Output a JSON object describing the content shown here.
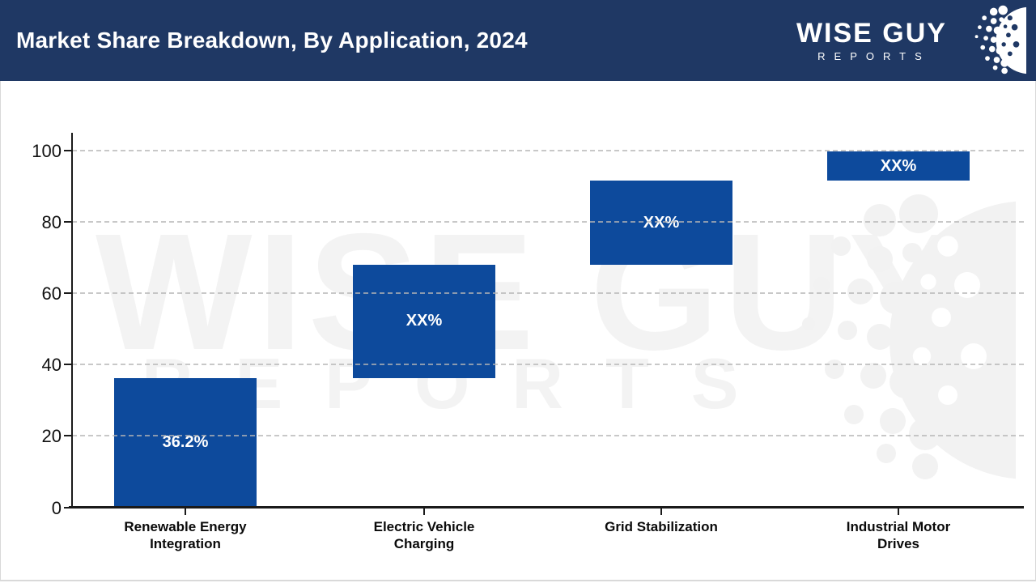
{
  "header": {
    "title": "Market Share Breakdown, By Application, 2024",
    "logo": {
      "line1": "WISE GUY",
      "line2": "REPORTS"
    }
  },
  "watermark": {
    "line1": "WISE GUY",
    "line2": "REPORTS"
  },
  "colors": {
    "header_navy": "#1f3864",
    "bar_blue": "#0d4a9c",
    "bar_label_white": "#ffffff",
    "grid_gray": "#b6b6b6",
    "axis_black": "#1a1a1a",
    "frame_gray": "#d9d9d9",
    "watermark_gray": "#f3f3f3"
  },
  "chart_data": {
    "type": "bar",
    "subtype": "waterfall",
    "title": "Market Share Breakdown, By Application, 2024",
    "xlabel": "",
    "ylabel": "",
    "ylim": [
      0,
      105
    ],
    "yticks": [
      0,
      20,
      40,
      60,
      80,
      100
    ],
    "grid": "horizontal dashed, drawn over bars",
    "legend": "none",
    "categories": [
      "Renewable Energy Integration",
      "Electric Vehicle Charging",
      "Grid Stabilization",
      "Industrial Motor Drives"
    ],
    "category_label_lines": [
      [
        "Renewable Energy",
        "Integration"
      ],
      [
        "Electric Vehicle",
        "Charging"
      ],
      [
        "Grid Stabilization"
      ],
      [
        "Industrial Motor",
        "Drives"
      ]
    ],
    "segments": [
      {
        "category": "Renewable Energy Integration",
        "start": 0,
        "end": 36.2,
        "label": "36.2%"
      },
      {
        "category": "Electric Vehicle Charging",
        "start": 36.2,
        "end": 68.0,
        "label": "XX%"
      },
      {
        "category": "Grid Stabilization",
        "start": 68.0,
        "end": 91.4,
        "label": "XX%"
      },
      {
        "category": "Industrial Motor Drives",
        "start": 91.4,
        "end": 99.6,
        "label": "XX%"
      }
    ]
  }
}
